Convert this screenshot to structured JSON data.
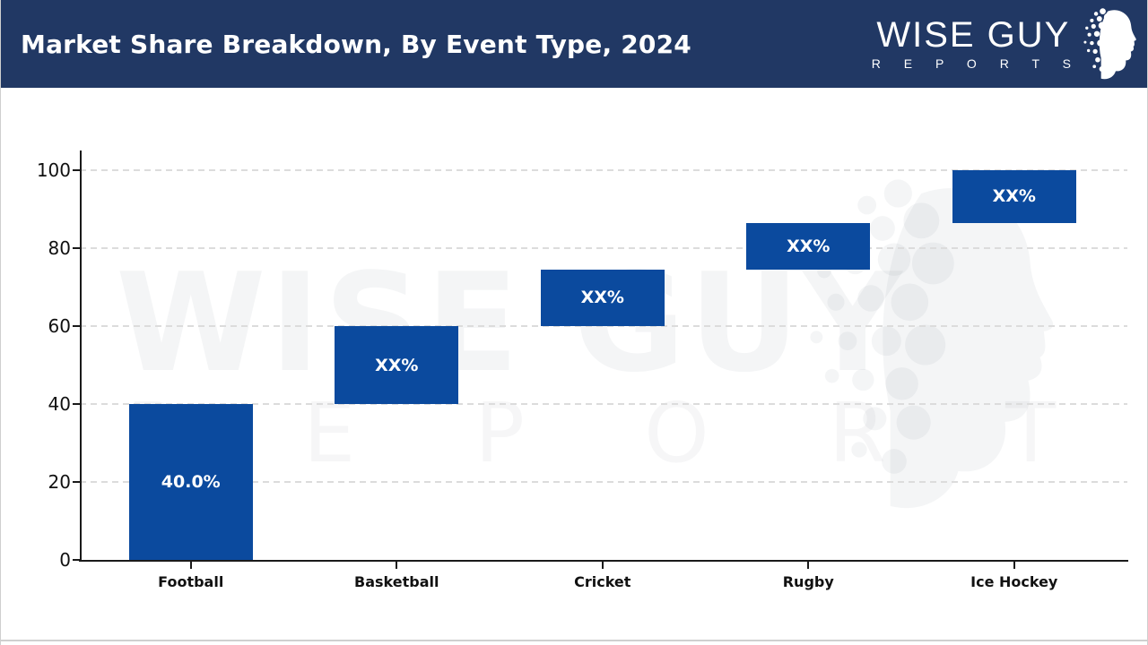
{
  "header": {
    "title": "Market Share Breakdown, By Event Type, 2024",
    "logo": {
      "line1": "WISE GUY",
      "line2": "R E P O R T S"
    }
  },
  "watermark": {
    "line1": "WISE GUY",
    "line2": "R E P O R T S"
  },
  "chart_data": {
    "type": "bar",
    "variant": "waterfall",
    "title": "Market Share Breakdown, By Event Type, 2024",
    "categories": [
      "Football",
      "Basketball",
      "Cricket",
      "Rugby",
      "Ice Hockey"
    ],
    "series": [
      {
        "name": "Market Share",
        "segments": [
          {
            "category": "Football",
            "start": 0,
            "end": 40
          },
          {
            "category": "Basketball",
            "start": 40,
            "end": 60
          },
          {
            "category": "Cricket",
            "start": 60,
            "end": 74.5
          },
          {
            "category": "Rugby",
            "start": 74.5,
            "end": 86.5
          },
          {
            "category": "Ice Hockey",
            "start": 86.5,
            "end": 100
          }
        ]
      }
    ],
    "bar_labels": [
      "40.0%",
      "XX%",
      "XX%",
      "XX%",
      "XX%"
    ],
    "xlabel": "",
    "ylabel": "",
    "yticks": [
      0,
      20,
      40,
      60,
      80,
      100
    ],
    "ylim": [
      0,
      105
    ],
    "grid": "horizontal-dashed",
    "legend": "none",
    "colors": {
      "bar": "#0b4a9e",
      "bar_label": "#ffffff",
      "axis": "#1a1a1a",
      "grid": "#dcdcdc",
      "header_bg": "#213864",
      "header_text": "#ffffff"
    }
  }
}
